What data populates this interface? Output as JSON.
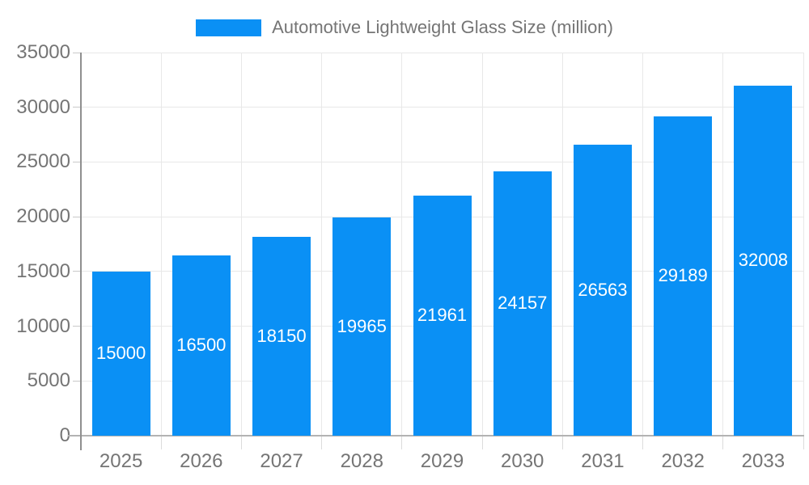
{
  "legend": {
    "label": "Automotive Lightweight Glass Size (million)"
  },
  "chart_data": {
    "type": "bar",
    "title": "Automotive Lightweight Glass Size (million)",
    "categories": [
      "2025",
      "2026",
      "2027",
      "2028",
      "2029",
      "2030",
      "2031",
      "2032",
      "2033"
    ],
    "values": [
      15000,
      16500,
      18150,
      19965,
      21961,
      24157,
      26563,
      29189,
      32008
    ],
    "series": [
      {
        "name": "Automotive Lightweight Glass Size (million)",
        "values": [
          15000,
          16500,
          18150,
          19965,
          21961,
          24157,
          26563,
          29189,
          32008
        ]
      }
    ],
    "xlabel": "",
    "ylabel": "",
    "ylim": [
      0,
      35000
    ],
    "yticks": [
      0,
      5000,
      10000,
      15000,
      20000,
      25000,
      30000,
      35000
    ],
    "grid": true,
    "legend_position": "top-center",
    "bar_label_position": "inside-center",
    "colors": {
      "bar": "#0A90F5",
      "grid": "#E8E8E8",
      "axis_y": "#8F8F8F",
      "axis_x": "#B3B3B3",
      "tick_y": "#C9C9C9",
      "tick_x": "#DCDCDC",
      "axis_text": "#757575",
      "bar_label_text": "#FFFFFF",
      "background": "#FFFFFF"
    }
  }
}
